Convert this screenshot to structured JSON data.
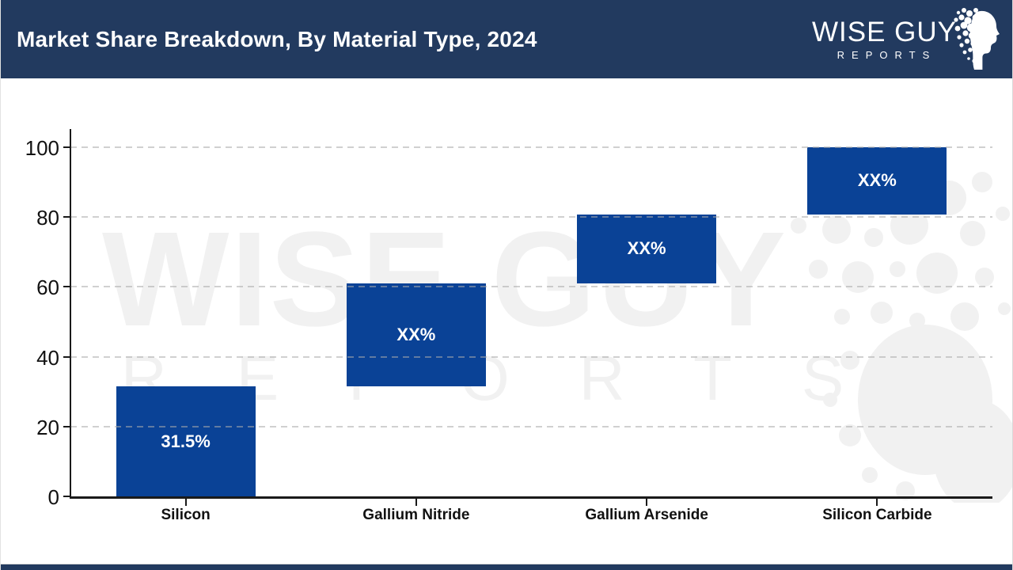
{
  "header": {
    "title": "Market Share Breakdown, By Material Type, 2024",
    "logo": {
      "line1": "WISE GUY",
      "line2": "REPORTS"
    }
  },
  "watermark": {
    "line1": "WISE GUY",
    "line2": "REPORTS"
  },
  "colors": {
    "header_bg": "#223a5f",
    "bar": "#0a4296",
    "axis": "#1a1a1a",
    "bar_label_text": "#ffffff",
    "watermark": "#f1f1f1",
    "grid": "#c9c9c9"
  },
  "chart_data": {
    "type": "bar",
    "subtype": "waterfall",
    "title": "Market Share Breakdown, By Material Type, 2024",
    "categories": [
      "Silicon",
      "Gallium Nitride",
      "Gallium Arsenide",
      "Silicon Carbide"
    ],
    "bars": [
      {
        "category": "Silicon",
        "start": 0,
        "end": 31.5,
        "label": "31.5%"
      },
      {
        "category": "Gallium Nitride",
        "start": 31.5,
        "end": 61,
        "label": "XX%"
      },
      {
        "category": "Gallium Arsenide",
        "start": 61,
        "end": 80.8,
        "label": "XX%"
      },
      {
        "category": "Silicon Carbide",
        "start": 80.8,
        "end": 100,
        "label": "XX%"
      }
    ],
    "yticks": [
      0,
      20,
      40,
      60,
      80,
      100
    ],
    "ylim": [
      0,
      105
    ],
    "xlabel": "",
    "ylabel": "",
    "grid": "horizontal-dashed",
    "legend": "none"
  }
}
